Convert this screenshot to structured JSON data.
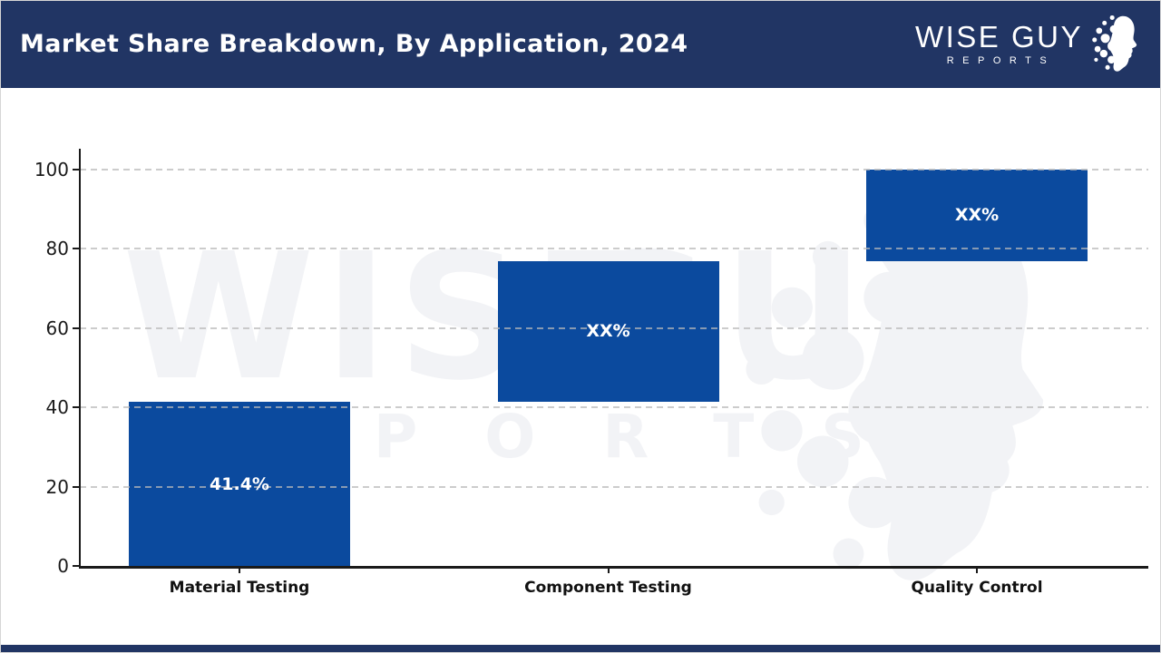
{
  "header": {
    "title": "Market Share Breakdown, By Application, 2024",
    "logo": {
      "line1": "WISE GUY",
      "line2": "REPORTS"
    }
  },
  "watermark": {
    "word1": "WISE",
    "word2": "GUY",
    "line2": "REPORTS"
  },
  "chart_data": {
    "type": "bar",
    "subtype": "cumulative-waterfall",
    "title": "Market Share Breakdown, By Application, 2024",
    "categories": [
      "Material Testing",
      "Component Testing",
      "Quality Control"
    ],
    "segments": [
      {
        "start": 0,
        "end": 41.4,
        "label": "41.4%"
      },
      {
        "start": 41.4,
        "end": 77,
        "label": "XX%"
      },
      {
        "start": 77,
        "end": 100,
        "label": "XX%"
      }
    ],
    "bar_labels": [
      "41.4%",
      "XX%",
      "XX%"
    ],
    "y_ticks": [
      0,
      20,
      40,
      60,
      80,
      100
    ],
    "ylim": [
      0,
      105
    ],
    "xlabel": "",
    "ylabel": "",
    "grid": "horizontal-dashed",
    "legend": "none"
  },
  "colors": {
    "header": "#213564",
    "footer": "#213564",
    "bar": "#0b4a9e",
    "grid": "#d9d9d9",
    "axis": "#1a1a1a",
    "watermark": "#f2f3f6",
    "title_text": "#ffffff",
    "bar_label_text": "#ffffff"
  }
}
